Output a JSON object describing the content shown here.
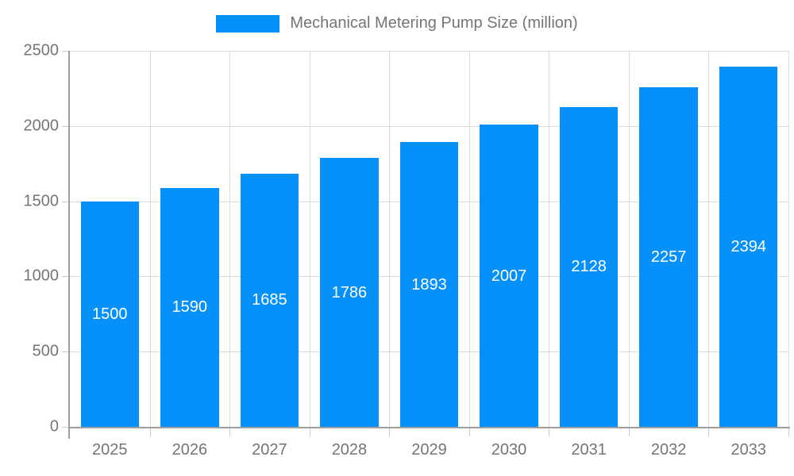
{
  "legend": {
    "label": "Mechanical Metering Pump Size (million)"
  },
  "chart_data": {
    "type": "bar",
    "title": "Mechanical Metering Pump Size (million)",
    "categories": [
      "2025",
      "2026",
      "2027",
      "2028",
      "2029",
      "2030",
      "2031",
      "2032",
      "2033"
    ],
    "values": [
      1500,
      1590,
      1685,
      1786,
      1893,
      2007,
      2128,
      2257,
      2394
    ],
    "xlabel": "",
    "ylabel": "",
    "ylim": [
      0,
      2500
    ],
    "yticks": [
      0,
      500,
      1000,
      1500,
      2000,
      2500
    ],
    "grid": true,
    "legend_position": "top",
    "value_labels": "inside-center",
    "bar_color": "#0690FA",
    "value_label_color": "#FFFFFF",
    "axis_text_color": "#757575",
    "grid_color": "#DCDCDC",
    "axis_line_color": "#9E9E9E"
  }
}
